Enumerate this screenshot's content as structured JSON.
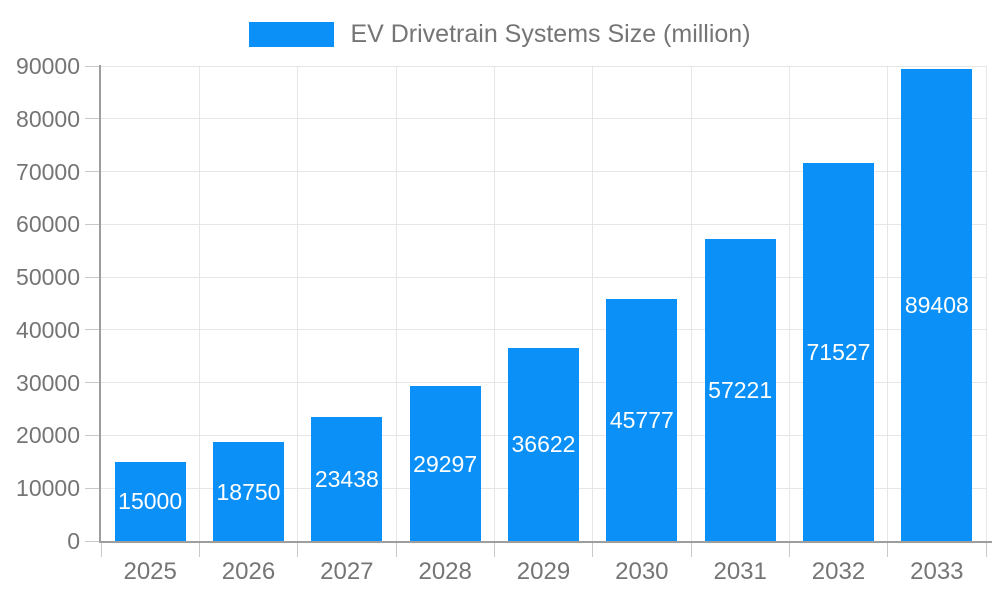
{
  "chart_data": {
    "type": "bar",
    "title": "EV Drivetrain Systems Size (million)",
    "categories": [
      "2025",
      "2026",
      "2027",
      "2028",
      "2029",
      "2030",
      "2031",
      "2032",
      "2033"
    ],
    "values": [
      15000,
      18750,
      23438,
      29297,
      36622,
      45777,
      57221,
      71527,
      89408
    ],
    "xlabel": "",
    "ylabel": "",
    "ylim": [
      0,
      90000
    ],
    "y_ticks": [
      0,
      10000,
      20000,
      30000,
      40000,
      50000,
      60000,
      70000,
      80000,
      90000
    ],
    "grid": true,
    "legend_position": "top",
    "colors": {
      "bar": "#0b90f8",
      "bar_value_text": "#ffffff",
      "axis_text": "#757575",
      "gridline": "#e6e6e6",
      "tick": "#c9c9c9",
      "axis_line": "#9e9e9e"
    }
  }
}
